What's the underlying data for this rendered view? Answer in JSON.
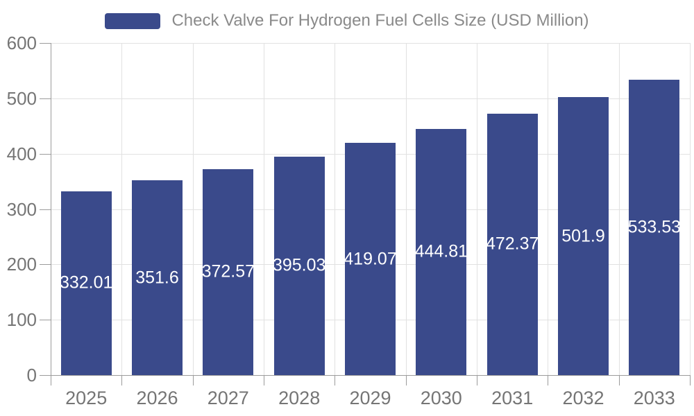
{
  "chart_data": {
    "type": "bar",
    "title": "Check Valve For Hydrogen Fuel Cells Size (USD Million)",
    "legend_entries": [
      "Check Valve For Hydrogen Fuel Cells Size (USD Million)"
    ],
    "legend_position": "top-center",
    "categories": [
      "2025",
      "2026",
      "2027",
      "2028",
      "2029",
      "2030",
      "2031",
      "2032",
      "2033"
    ],
    "values": [
      332.01,
      351.6,
      372.57,
      395.03,
      419.07,
      444.81,
      472.37,
      501.9,
      533.53
    ],
    "xlabel": "",
    "ylabel": "",
    "ylim": [
      0,
      600
    ],
    "y_ticks": [
      0,
      100,
      200,
      300,
      400,
      500,
      600
    ],
    "grid": true,
    "value_label_position": "inside-center",
    "colors": {
      "bar": "#3A4A8B",
      "grid_line": "#E1E1E1",
      "axis_line": "#9B9B9B",
      "tick_label": "#757575",
      "legend_text": "#8A8A8A",
      "value_label": "#FFFFFF",
      "background": "#FFFFFF"
    }
  }
}
